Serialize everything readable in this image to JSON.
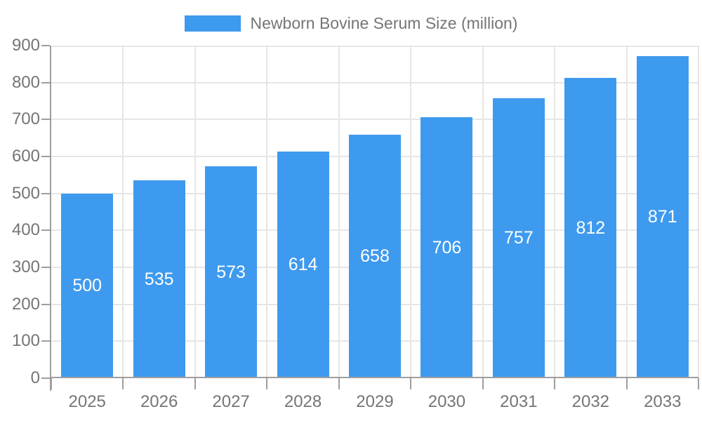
{
  "legend": {
    "label": "Newborn Bovine Serum Size (million)"
  },
  "chart_data": {
    "type": "bar",
    "title": "Newborn Bovine Serum Size (million)",
    "series_name": "Newborn Bovine Serum Size (million)",
    "categories": [
      "2025",
      "2026",
      "2027",
      "2028",
      "2029",
      "2030",
      "2031",
      "2032",
      "2033"
    ],
    "values": [
      500,
      535,
      573,
      614,
      658,
      706,
      757,
      812,
      871
    ],
    "xlabel": "",
    "ylabel": "",
    "ylim": [
      0,
      900
    ],
    "yticks": [
      0,
      100,
      200,
      300,
      400,
      500,
      600,
      700,
      800,
      900
    ],
    "grid": true,
    "value_labels": "inside-center",
    "legend_position": "top-center",
    "colors": {
      "bar": "#3E9AEE",
      "value_label": "#FFFFFF",
      "axis_text": "#757575",
      "grid_line": "#E6E6E6",
      "axis_line": "#9E9E9E",
      "background": "#FFFFFF"
    }
  }
}
